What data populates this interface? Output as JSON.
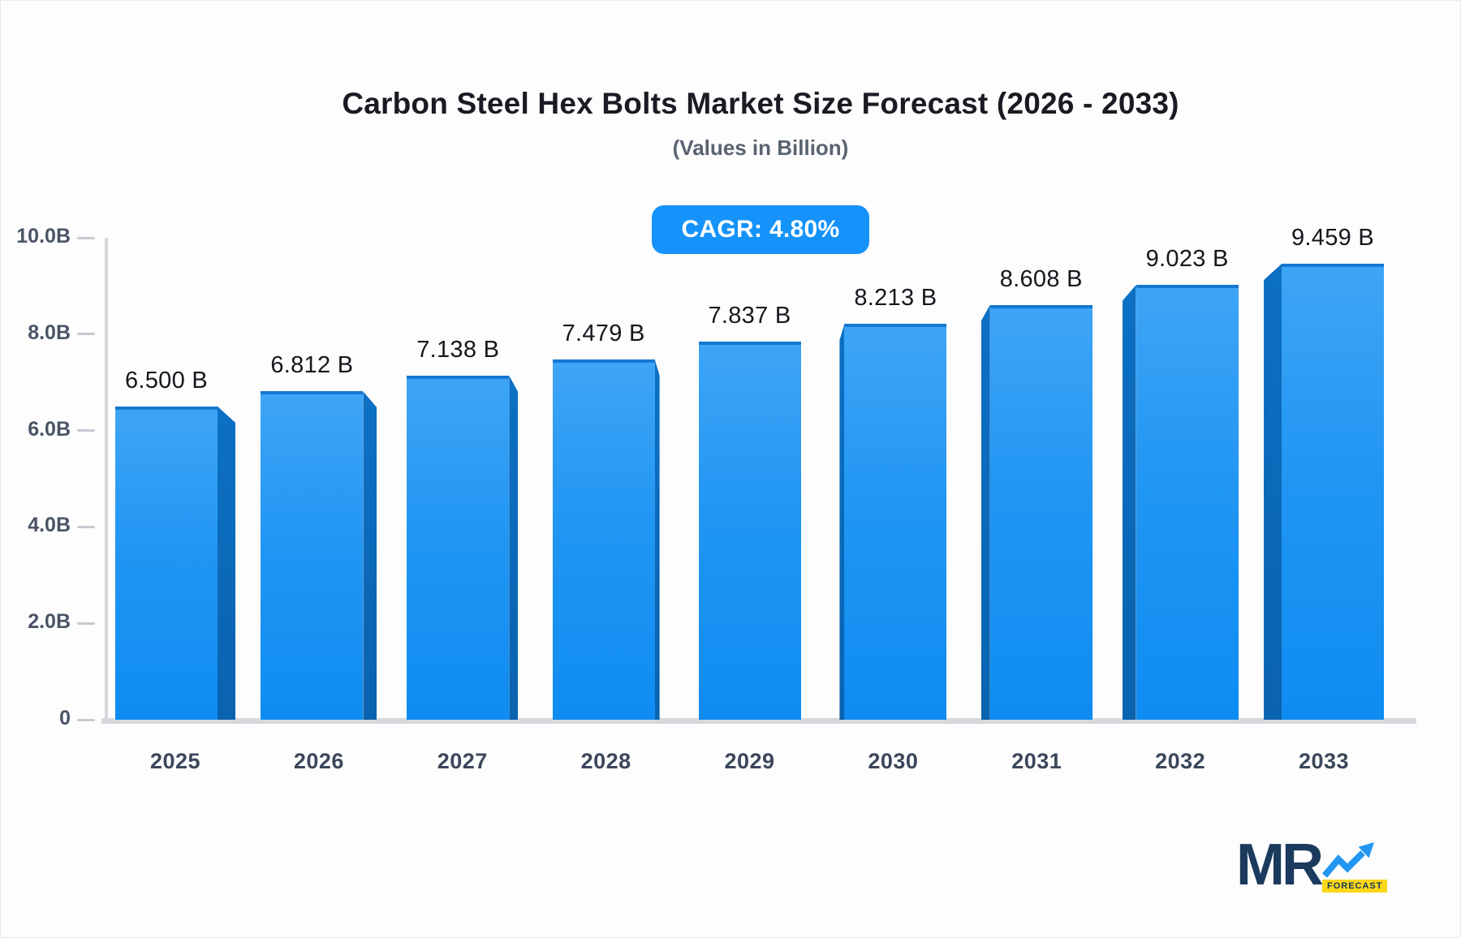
{
  "chart_data": {
    "type": "bar",
    "title": "Carbon Steel Hex Bolts Market Size Forecast (2026 - 2033)",
    "subtitle": "(Values in Billion)",
    "annotation": "CAGR: 4.80%",
    "categories": [
      "2025",
      "2026",
      "2027",
      "2028",
      "2029",
      "2030",
      "2031",
      "2032",
      "2033"
    ],
    "values": [
      6.5,
      6.812,
      7.138,
      7.479,
      7.837,
      8.213,
      8.608,
      9.023,
      9.459
    ],
    "value_labels": [
      "6.500 B",
      "6.812 B",
      "7.138 B",
      "7.479 B",
      "7.837 B",
      "8.213 B",
      "8.608 B",
      "9.023 B",
      "9.459 B"
    ],
    "ylim": [
      0,
      10
    ],
    "y_ticks": [
      {
        "value": 0,
        "label": "0"
      },
      {
        "value": 2,
        "label": "2.0B"
      },
      {
        "value": 4,
        "label": "4.0B"
      },
      {
        "value": 6,
        "label": "6.0B"
      },
      {
        "value": 8,
        "label": "8.0B"
      },
      {
        "value": 10,
        "label": "10.0B"
      }
    ],
    "grid": false,
    "legend": false,
    "colors": {
      "bar_face_top": "#3ea5f6",
      "bar_face_bottom": "#0e8cf2",
      "bar_side": "#0b6cbd",
      "bar_top_edge": "#1678d2",
      "axis": "#d5d8dd",
      "tick": "#c5c9d0",
      "y_label": "#4a5466",
      "x_label": "#3b475a",
      "value_label": "#16161d",
      "badge_background": "#1593fa",
      "badge_text": "#ffffff"
    }
  },
  "logo": {
    "mr": "MR",
    "forecast": "FORECAST",
    "navy": "#1b3a5e",
    "yellow": "#fdd717",
    "arrow_blue": "#2196f3"
  }
}
